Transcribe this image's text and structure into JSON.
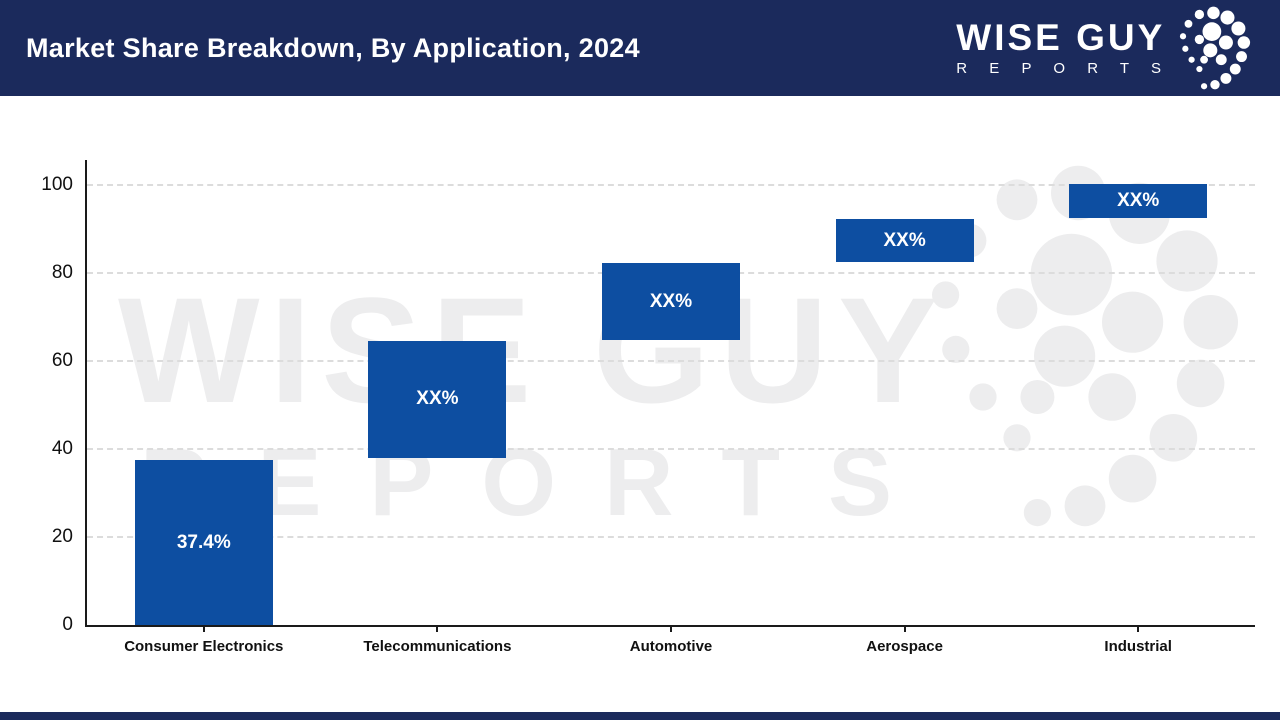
{
  "header": {
    "title": "Market Share Breakdown, By Application, 2024",
    "logo": {
      "line1": "WISE GUY",
      "line2": "R E P O R T S"
    }
  },
  "watermark": {
    "line1": "WISE GUY",
    "line2": "REPORTS"
  },
  "colors": {
    "header_bg": "#1b2a5c",
    "bar": "#0d4ea1",
    "grid": "#dcdcdc",
    "watermark": "#ededee"
  },
  "chart_data": {
    "type": "bar",
    "subtype": "waterfall",
    "title": "Market Share Breakdown, By Application, 2024",
    "categories": [
      "Consumer Electronics",
      "Telecommunications",
      "Automotive",
      "Aerospace",
      "Industrial"
    ],
    "segments": [
      {
        "category": "Consumer Electronics",
        "start": 0,
        "end": 37.4,
        "label": "37.4%"
      },
      {
        "category": "Telecommunications",
        "start": 38,
        "end": 64.6,
        "label": "XX%"
      },
      {
        "category": "Automotive",
        "start": 64.8,
        "end": 82.2,
        "label": "XX%"
      },
      {
        "category": "Aerospace",
        "start": 82.4,
        "end": 92.2,
        "label": "XX%"
      },
      {
        "category": "Industrial",
        "start": 92.5,
        "end": 100.2,
        "label": "XX%"
      }
    ],
    "xlabel": "",
    "ylabel": "",
    "ylim": [
      0,
      100
    ],
    "yticks": [
      0,
      20,
      40,
      60,
      80,
      100
    ],
    "grid": true,
    "legend": false
  }
}
